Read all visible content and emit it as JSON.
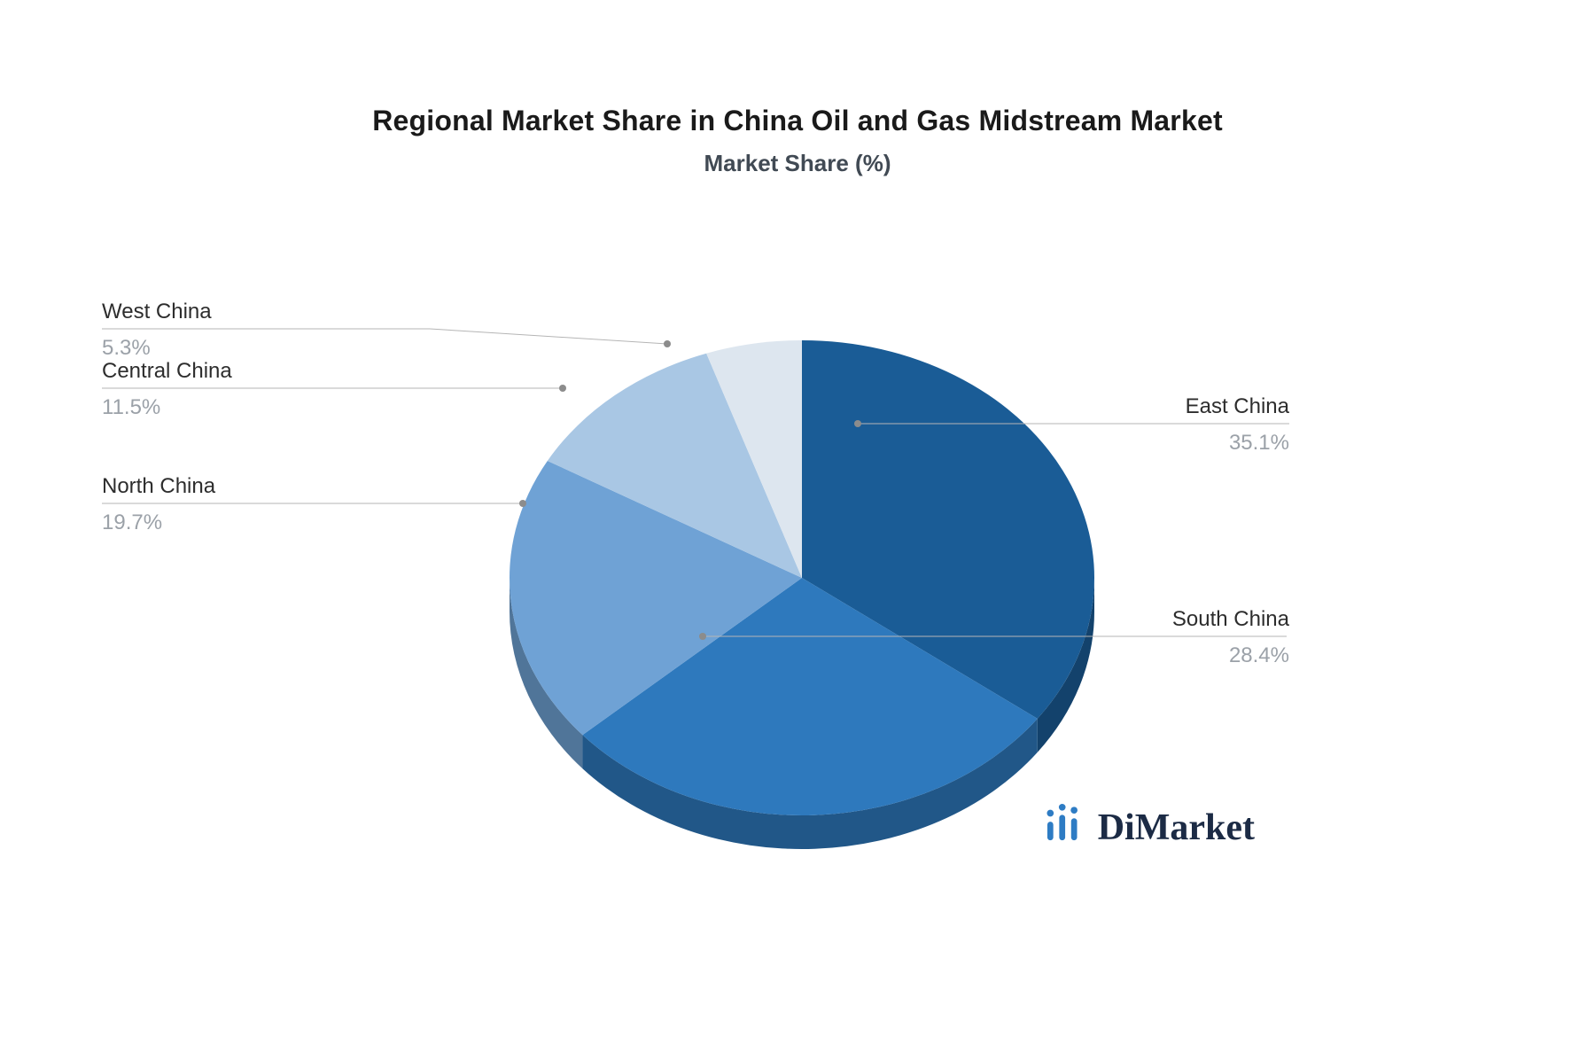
{
  "chart_data": {
    "type": "pie",
    "style": "3d",
    "title": "Regional Market Share in China Oil and Gas Midstream Market",
    "subtitle": "Market Share (%)",
    "unit": "%",
    "start_angle_deg": -90,
    "direction": "clockwise",
    "legend": "none",
    "labels": [
      "East China",
      "South China",
      "North China",
      "Central China",
      "West China"
    ],
    "values": [
      35.1,
      28.4,
      19.7,
      11.5,
      5.3
    ],
    "label_texts": [
      "35.1%",
      "28.4%",
      "19.7%",
      "11.5%",
      "5.3%"
    ],
    "colors": [
      "#1a5c96",
      "#2e79bd",
      "#6fa2d5",
      "#a9c7e4",
      "#dde6ef"
    ]
  },
  "branding": {
    "logo_text": "DiMarket",
    "logo_text_color": "#1c2b45",
    "logo_icon_color": "#2e7cc4"
  }
}
